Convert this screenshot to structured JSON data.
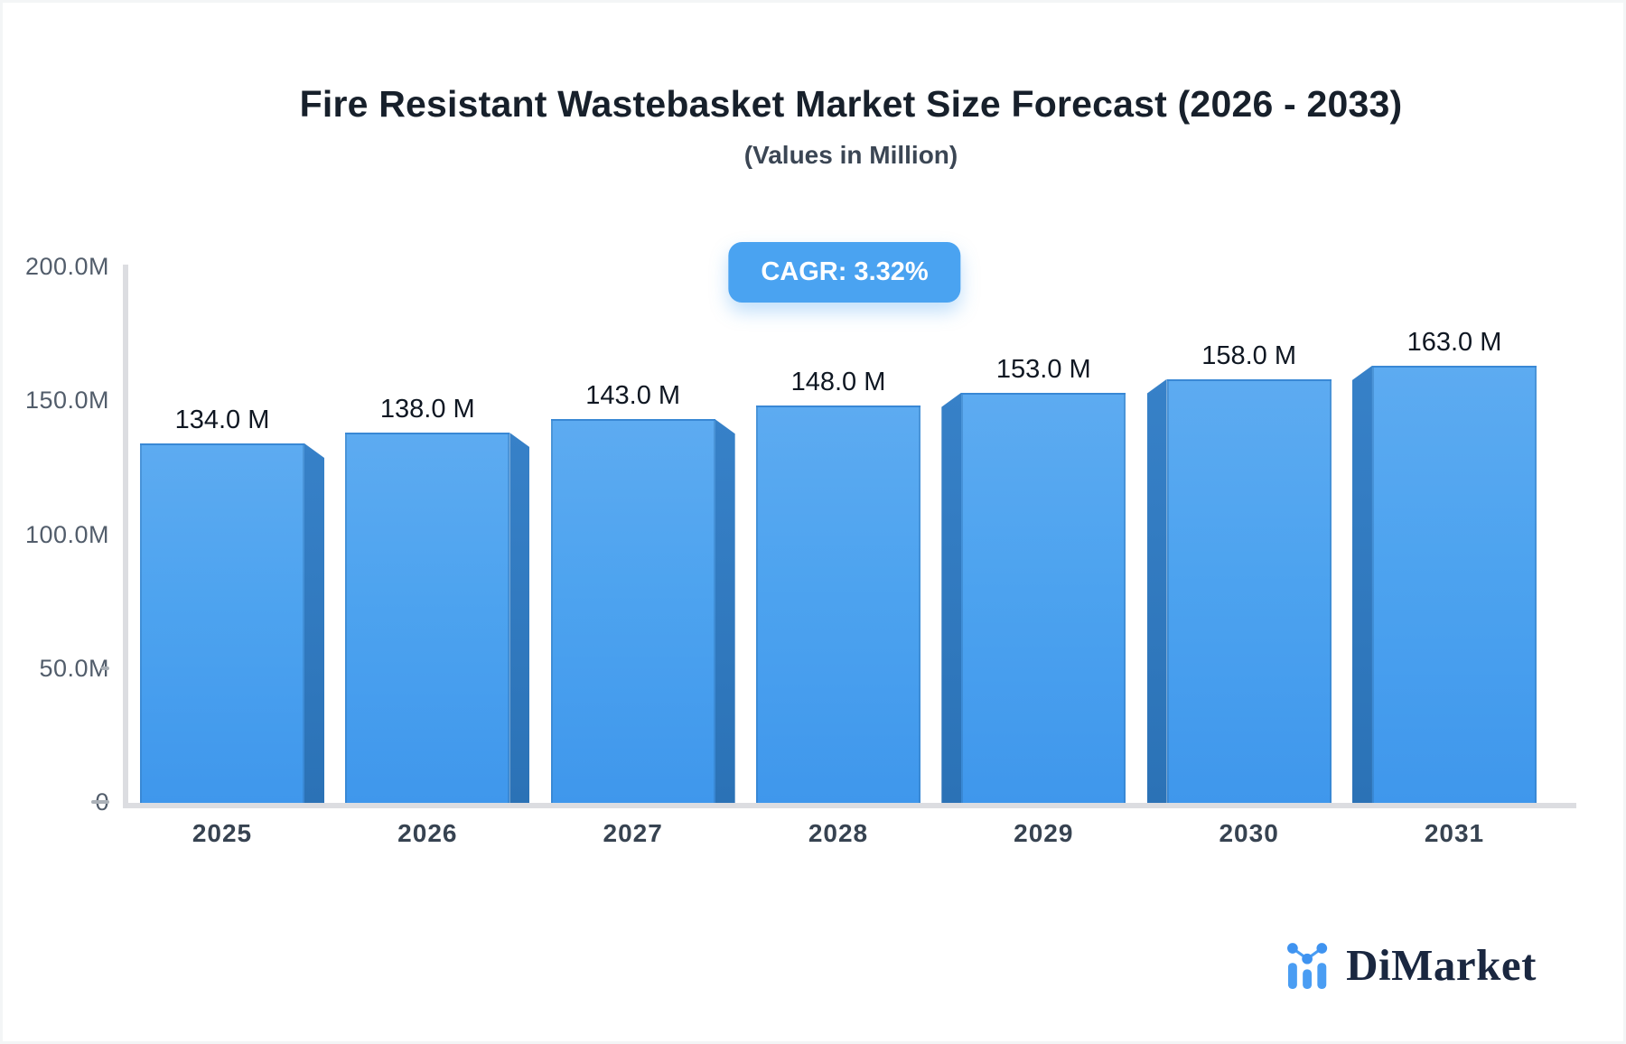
{
  "title": "Fire Resistant Wastebasket Market Size Forecast (2026 - 2033)",
  "subtitle": "(Values in Million)",
  "badge": {
    "label": "CAGR: 3.32%"
  },
  "logo": {
    "text": "DiMarket"
  },
  "colors": {
    "accent_blue": "#4aa3f1",
    "bar_face_top": "#5dabf1",
    "bar_face_bottom": "#3f97ec",
    "bar_side": "#2e79c0",
    "axis_line": "#dcdde1",
    "title_text": "#17202b",
    "axis_text": "#525d6b",
    "x_label_text": "#374351",
    "value_label_text": "#0f1722",
    "logo_text": "#1a2740",
    "logo_icon": "#4a9df3"
  },
  "chart_data": {
    "type": "bar",
    "title": "Fire Resistant Wastebasket Market Size Forecast (2026 - 2033)",
    "subtitle": "(Values in Million)",
    "annotation": "CAGR: 3.32%",
    "categories": [
      "2025",
      "2026",
      "2027",
      "2028",
      "2029",
      "2030",
      "2031"
    ],
    "values": [
      134,
      138,
      143,
      148,
      153,
      158,
      163
    ],
    "value_labels": [
      "134.0 M",
      "138.0 M",
      "143.0 M",
      "148.0 M",
      "153.0 M",
      "158.0 M",
      "163.0 M"
    ],
    "unit": "Million",
    "xlabel": "",
    "ylabel": "",
    "ylim": [
      0,
      200
    ],
    "y_tick_labels": [
      "200.0M",
      "150.0M",
      "100.0M",
      "50.0M",
      "0"
    ],
    "grid": "off",
    "legend": "none",
    "pseudo_3d_side": [
      "right",
      "right",
      "right",
      "none",
      "left",
      "left",
      "left"
    ]
  }
}
